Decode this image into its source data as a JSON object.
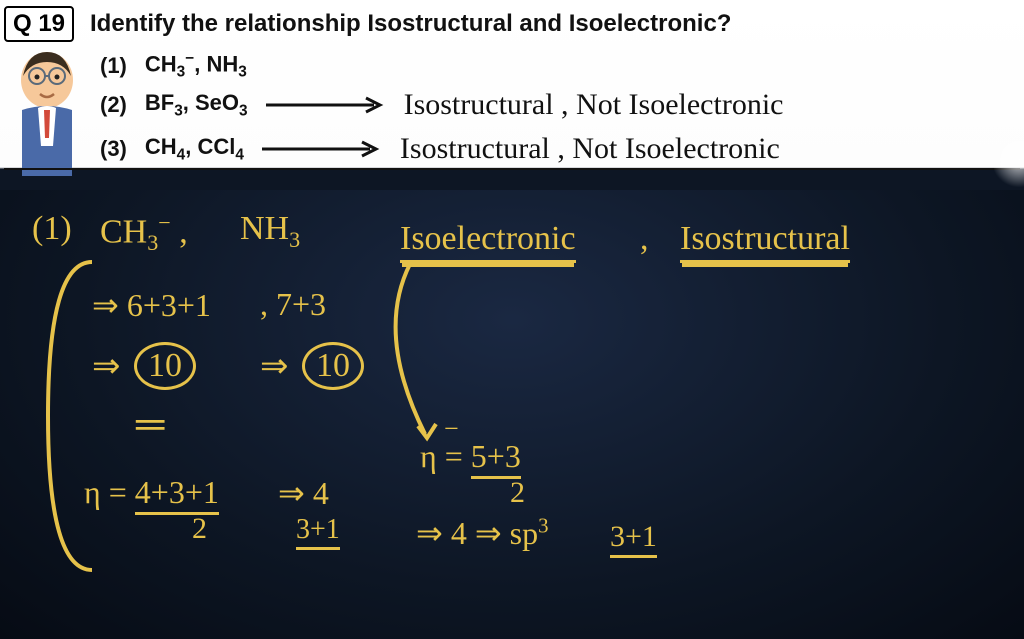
{
  "colors": {
    "hw": "#e6c24a",
    "bg_center": "#1a2842",
    "bg_edge": "#060b14",
    "banner": "#ffffff",
    "ink": "#111111"
  },
  "badge": "Q 19",
  "question": "Identify the relationship Isostructural and Isoelectronic?",
  "options": {
    "o1": {
      "num": "(1)",
      "formula_html": "CH<span class='sub'>3</span><span class='sup'>−</span>, NH<span class='sub'>3</span>"
    },
    "o2": {
      "num": "(2)",
      "formula_html": "BF<span class='sub'>3</span>, SeO<span class='sub'>3</span>",
      "ann": "Isostructural , Not Isoelectronic"
    },
    "o3": {
      "num": "(3)",
      "formula_html": "CH<span class='sub'>4</span>, CCl<span class='sub'>4</span>",
      "ann": "Isostructural , Not Isoelectronic"
    }
  },
  "hand": {
    "h_opt1": "(1)",
    "h_ch3": "CH<span class='sub'>3</span><span class='sup'>−</span> ,",
    "h_nh3": "NH<span class='sub'>3</span>",
    "h_iso_e": "Isoelectronic",
    "h_comma": ",",
    "h_iso_s": "Isostructural",
    "h_631": "⇒ 6+3+1",
    "h_73": ", 7+3",
    "h_arr1": "⇒",
    "h_arr2": "⇒",
    "h_ten1": "10",
    "h_ten2": "10",
    "h_dbleq": "═",
    "h_eta1": "η = <span class='uline'>4+3+1</span>",
    "h_eta1_den": "2",
    "h_eta1_res": "⇒ 4",
    "h_eta1_hy": "3+1",
    "h_eta2_top": "η = <span class='uline'>5+3</span>",
    "h_eta2_den": "2",
    "h_eta2_res": "⇒ 4 ⇒ sp<span class='sup'>3</span>",
    "h_eta2_hy": "3+1",
    "h_minus": "−"
  },
  "avatar": {
    "face": "#f6c89a",
    "hair": "#3a2d1f",
    "shirt": "#ffffff",
    "tie": "#d34a3a",
    "vest": "#4a6aa8",
    "glasses": "#5a6a7a"
  }
}
